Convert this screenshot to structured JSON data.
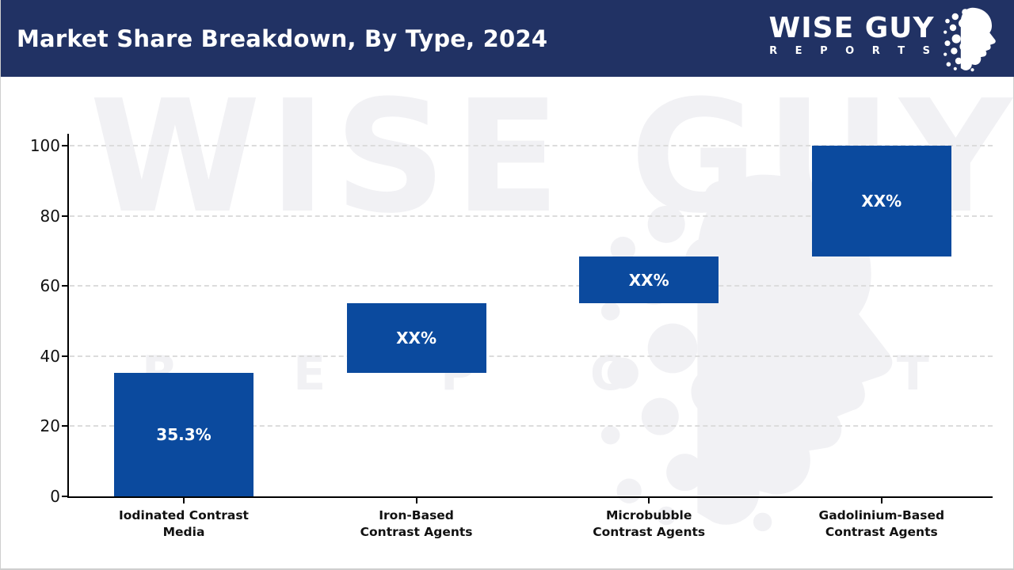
{
  "header": {
    "title": "Market Share Breakdown, By Type, 2024",
    "logo": {
      "line1": "WISE GUY",
      "line2": "R E P O R T S"
    }
  },
  "watermark": {
    "line1": "WISE GUY",
    "line2": "R E P O R T S"
  },
  "chart_data": {
    "type": "bar",
    "subtype": "floating-waterfall",
    "title": "Market Share Breakdown, By Type, 2024",
    "categories": [
      "Iodinated Contrast Media",
      "Iron-Based Contrast Agents",
      "Microbubble Contrast Agents",
      "Gadolinium-Based Contrast Agents"
    ],
    "category_lines": [
      [
        "Iodinated Contrast",
        "Media"
      ],
      [
        "Iron-Based",
        "Contrast Agents"
      ],
      [
        "Microbubble",
        "Contrast Agents"
      ],
      [
        "Gadolinium-Based",
        "Contrast Agents"
      ]
    ],
    "bars": [
      {
        "start": 0,
        "end": 35.3,
        "label": "35.3%"
      },
      {
        "start": 35.3,
        "end": 55.0,
        "label": "XX%"
      },
      {
        "start": 55.0,
        "end": 68.4,
        "label": "XX%"
      },
      {
        "start": 68.4,
        "end": 100.0,
        "label": "XX%"
      }
    ],
    "xlabel": "",
    "ylabel": "",
    "ylim": [
      0,
      100
    ],
    "yticks": [
      0,
      20,
      40,
      60,
      80,
      100
    ],
    "grid": "horizontal-dashed",
    "legend": "none",
    "bar_color": "#0b4a9e",
    "bar_label_color": "#ffffff"
  },
  "colors": {
    "header_bg": "#213264",
    "header_text": "#ffffff",
    "page_bg": "#ffffff",
    "axis": "#000000",
    "gridline": "#dcdcdc",
    "tick_label": "#111111",
    "watermark": "#f1f1f4",
    "border": "#cfcfcf"
  }
}
